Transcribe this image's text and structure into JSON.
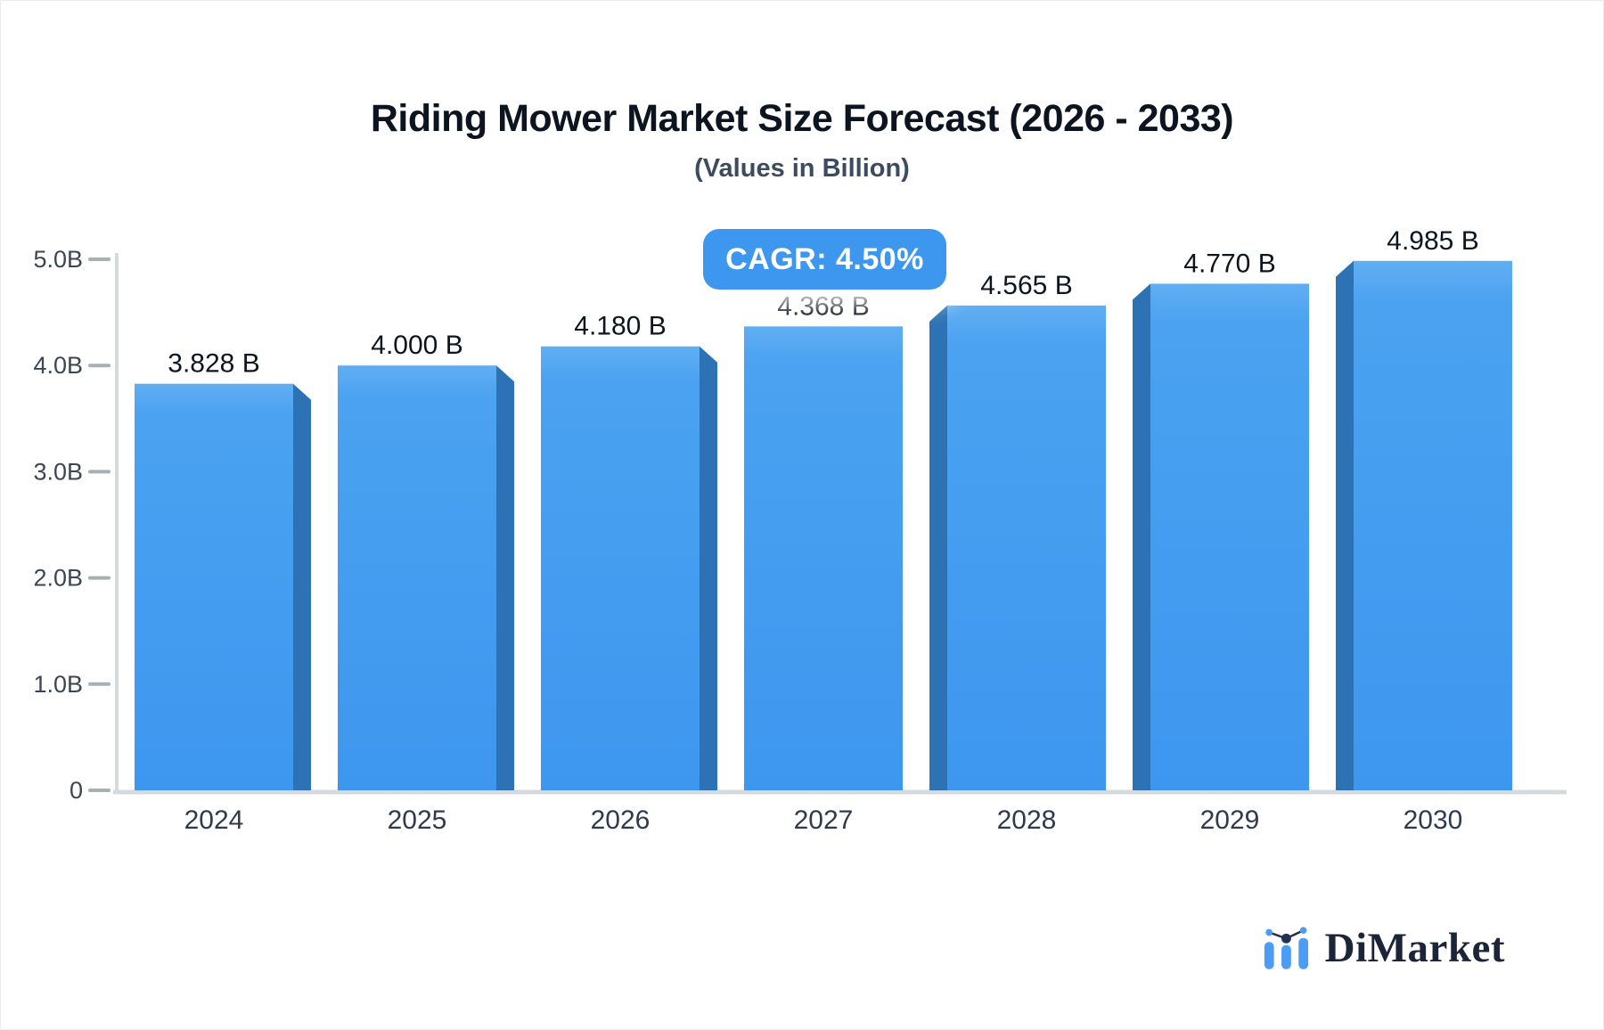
{
  "chart_data": {
    "type": "bar",
    "title": "Riding Mower Market Size Forecast (2026 - 2033)",
    "subtitle": "(Values in Billion)",
    "categories": [
      "2024",
      "2025",
      "2026",
      "2027",
      "2028",
      "2029",
      "2030"
    ],
    "values": [
      3.828,
      4.0,
      4.18,
      4.368,
      4.565,
      4.77,
      4.985
    ],
    "value_labels": [
      "3.828 B",
      "4.000 B",
      "4.180 B",
      "4.368 B",
      "4.565 B",
      "4.770 B",
      "4.985 B"
    ],
    "y_tick_labels": [
      "0",
      "1.0B",
      "2.0B",
      "3.0B",
      "4.0B",
      "5.0B"
    ],
    "ylim": [
      0,
      5
    ],
    "xlabel": "",
    "ylabel": "",
    "grid": "off",
    "legend": "none",
    "bar_style": "3d-extruded-center-perspective",
    "cagr": "4.50%"
  },
  "badge": {
    "label": "CAGR: 4.50%"
  },
  "logo": {
    "text": "DiMarket",
    "icon": "mini-bar-chart-icon"
  },
  "colors": {
    "bar_face_top": "#60aef2",
    "bar_face_mid": "#4aa2f0",
    "bar_face_bottom": "#3e97ef",
    "bar_side": "#2c72b4",
    "badge_bg": "#3e97ee",
    "axis_line": "#d6d9dd",
    "tick_dash": "#a9afb7",
    "value_text": "#0d1520",
    "axis_text": "#3c4654",
    "logo_blue": "#4a9cf5",
    "logo_navy": "#24324f"
  }
}
